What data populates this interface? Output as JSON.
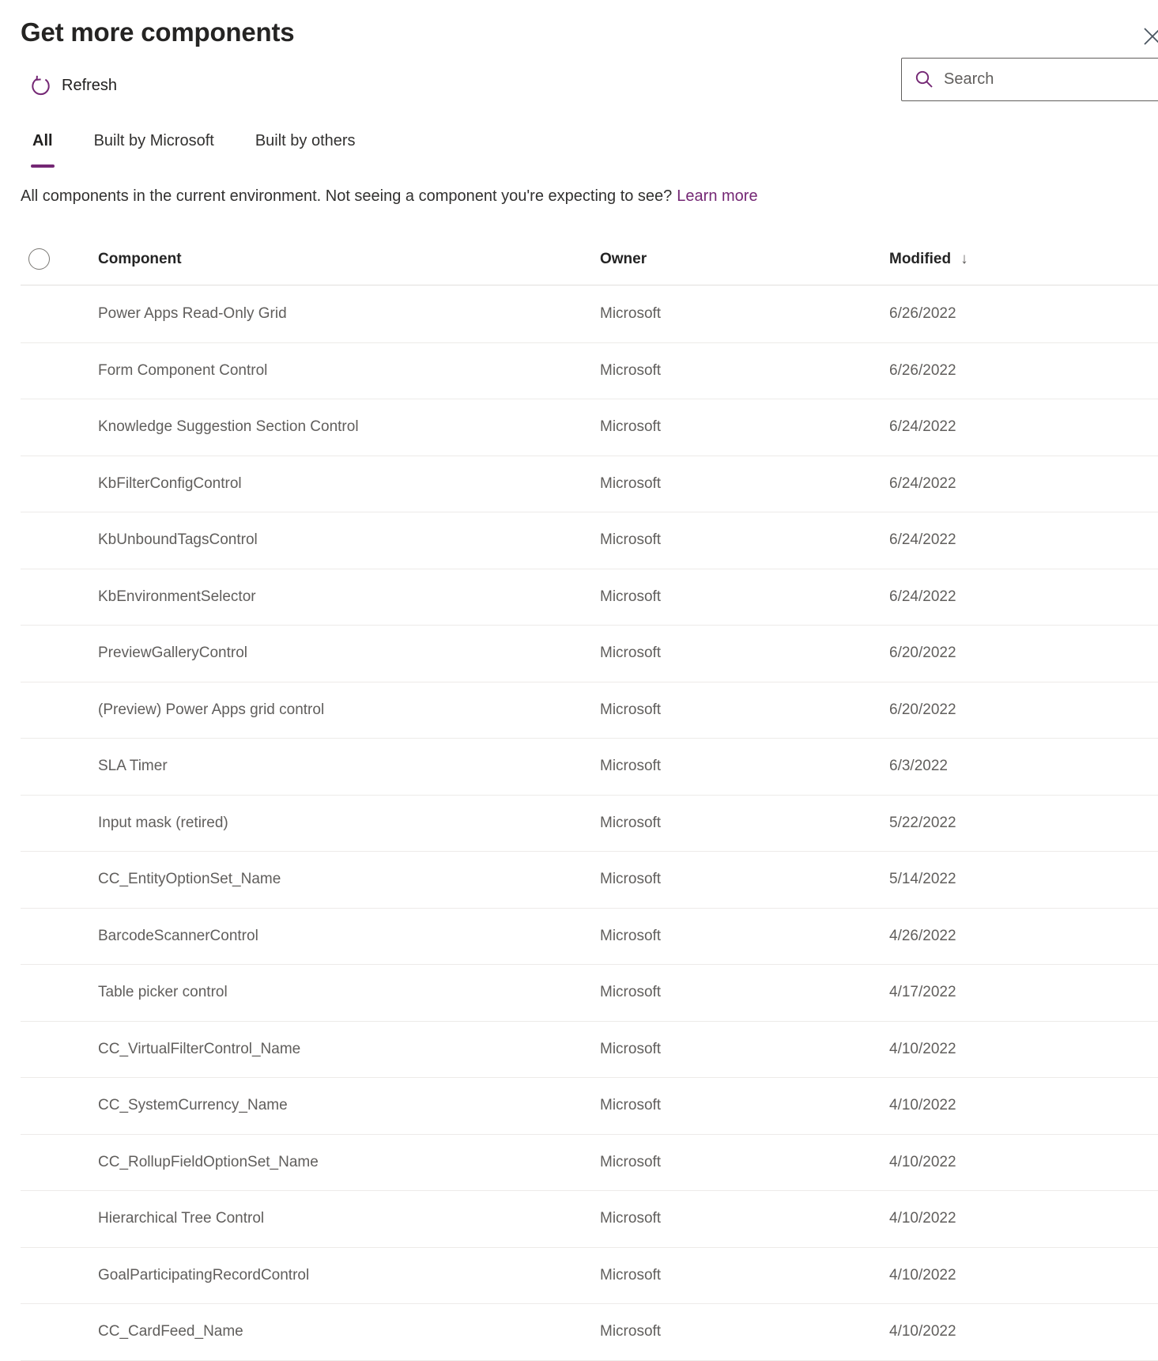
{
  "dialog": {
    "title": "Get more components"
  },
  "toolbar": {
    "refresh_label": "Refresh",
    "search_placeholder": "Search",
    "icons": [
      "refresh-icon",
      "search-icon",
      "close-icon"
    ]
  },
  "tabs": [
    {
      "label": "All",
      "active": true
    },
    {
      "label": "Built by Microsoft",
      "active": false
    },
    {
      "label": "Built by others",
      "active": false
    }
  ],
  "description": {
    "text": "All components in the current environment. Not seeing a component you're expecting to see?",
    "link_label": "Learn more"
  },
  "table": {
    "columns": {
      "component": "Component",
      "owner": "Owner",
      "modified": "Modified"
    },
    "sort": {
      "column": "Modified",
      "direction": "desc",
      "arrow": "↓"
    },
    "rows": [
      {
        "component": "Power Apps Read-Only Grid",
        "owner": "Microsoft",
        "modified": "6/26/2022"
      },
      {
        "component": "Form Component Control",
        "owner": "Microsoft",
        "modified": "6/26/2022"
      },
      {
        "component": "Knowledge Suggestion Section Control",
        "owner": "Microsoft",
        "modified": "6/24/2022"
      },
      {
        "component": "KbFilterConfigControl",
        "owner": "Microsoft",
        "modified": "6/24/2022"
      },
      {
        "component": "KbUnboundTagsControl",
        "owner": "Microsoft",
        "modified": "6/24/2022"
      },
      {
        "component": "KbEnvironmentSelector",
        "owner": "Microsoft",
        "modified": "6/24/2022"
      },
      {
        "component": "PreviewGalleryControl",
        "owner": "Microsoft",
        "modified": "6/20/2022"
      },
      {
        "component": "(Preview) Power Apps grid control",
        "owner": "Microsoft",
        "modified": "6/20/2022"
      },
      {
        "component": "SLA Timer",
        "owner": "Microsoft",
        "modified": "6/3/2022"
      },
      {
        "component": "Input mask (retired)",
        "owner": "Microsoft",
        "modified": "5/22/2022"
      },
      {
        "component": "CC_EntityOptionSet_Name",
        "owner": "Microsoft",
        "modified": "5/14/2022"
      },
      {
        "component": "BarcodeScannerControl",
        "owner": "Microsoft",
        "modified": "4/26/2022"
      },
      {
        "component": "Table picker control",
        "owner": "Microsoft",
        "modified": "4/17/2022"
      },
      {
        "component": "CC_VirtualFilterControl_Name",
        "owner": "Microsoft",
        "modified": "4/10/2022"
      },
      {
        "component": "CC_SystemCurrency_Name",
        "owner": "Microsoft",
        "modified": "4/10/2022"
      },
      {
        "component": "CC_RollupFieldOptionSet_Name",
        "owner": "Microsoft",
        "modified": "4/10/2022"
      },
      {
        "component": "Hierarchical Tree Control",
        "owner": "Microsoft",
        "modified": "4/10/2022"
      },
      {
        "component": "GoalParticipatingRecordControl",
        "owner": "Microsoft",
        "modified": "4/10/2022"
      },
      {
        "component": "CC_CardFeed_Name",
        "owner": "Microsoft",
        "modified": "4/10/2022"
      }
    ]
  },
  "colors": {
    "accent": "#742774",
    "text_primary": "#252423",
    "text_secondary": "#605e5c"
  }
}
